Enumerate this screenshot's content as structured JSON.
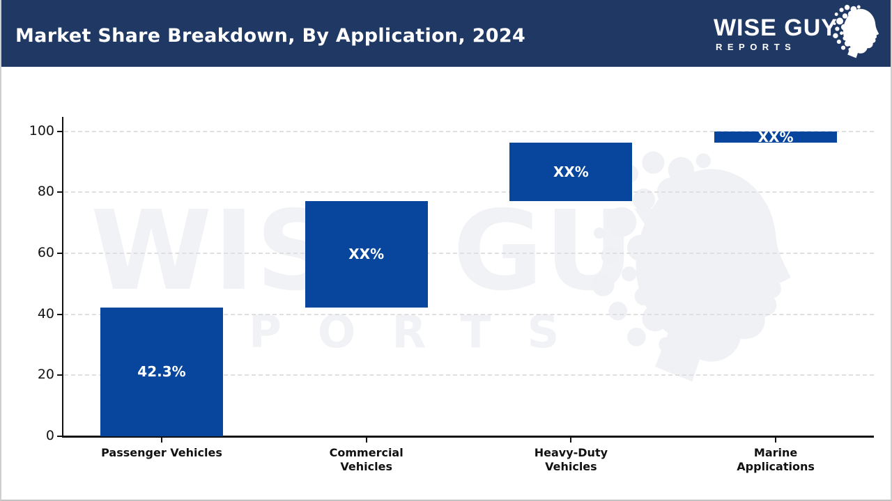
{
  "header": {
    "title": "Market Share Breakdown, By Application, 2024",
    "bg_color": "#1f3864",
    "logo": {
      "name": "WISE GUY",
      "subname": "REPORTS"
    }
  },
  "watermark": {
    "big_text": "WISE GUY",
    "small_text": "REPORTS"
  },
  "colors": {
    "bar": "#08459c",
    "bar_label": "#ffffff",
    "grid": "#dfdfdf",
    "axis": "#111111",
    "watermark": "#f1f2f5"
  },
  "chart_data": {
    "type": "bar",
    "subtype": "waterfall-stacked-percentage",
    "title": "Market Share Breakdown, By Application, 2024",
    "xlabel": "",
    "ylabel": "",
    "ylim": [
      0,
      100
    ],
    "yticks": [
      0,
      20,
      40,
      60,
      80,
      100
    ],
    "grid": "horizontal dashed",
    "legend": "none",
    "bar_color": "#08459c",
    "categories": [
      "Passenger Vehicles",
      "Commercial Vehicles",
      "Heavy-Duty Vehicles",
      "Marine Applications"
    ],
    "segments": [
      {
        "category": "Passenger Vehicles",
        "lines": [
          "Passenger Vehicles"
        ],
        "start": 0,
        "end": 42.3,
        "value_label": "42.3%"
      },
      {
        "category": "Commercial Vehicles",
        "lines": [
          "Commercial",
          "Vehicles"
        ],
        "start": 42.3,
        "end": 77.0,
        "value_label": "XX%"
      },
      {
        "category": "Heavy-Duty Vehicles",
        "lines": [
          "Heavy-Duty",
          "Vehicles"
        ],
        "start": 77.0,
        "end": 96.2,
        "value_label": "XX%"
      },
      {
        "category": "Marine Applications",
        "lines": [
          "Marine",
          "Applications"
        ],
        "start": 96.2,
        "end": 100.0,
        "value_label": "XX%"
      }
    ]
  }
}
